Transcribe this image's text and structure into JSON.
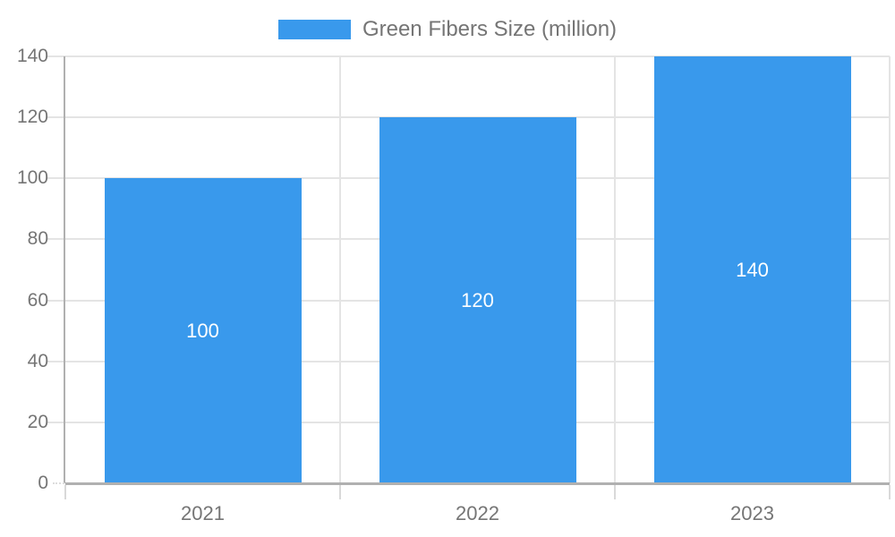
{
  "chart_data": {
    "type": "bar",
    "title": "",
    "xlabel": "",
    "ylabel": "",
    "categories": [
      "2021",
      "2022",
      "2023"
    ],
    "series": [
      {
        "name": "Green Fibers Size (million)",
        "values": [
          100,
          120,
          140
        ]
      }
    ],
    "yticks": [
      0,
      20,
      40,
      60,
      80,
      100,
      120,
      140
    ],
    "ylim": [
      0,
      140
    ],
    "grid": true,
    "legend_position": "top",
    "bar_value_labels_shown": true,
    "colors": {
      "bar": "#3999ec",
      "bar_label": "#ffffff",
      "axis_text": "#757575",
      "legend_text": "#757575",
      "gridline": "#e4e4e4",
      "axis_line": "#b0b0b0",
      "background": "#ffffff"
    }
  }
}
